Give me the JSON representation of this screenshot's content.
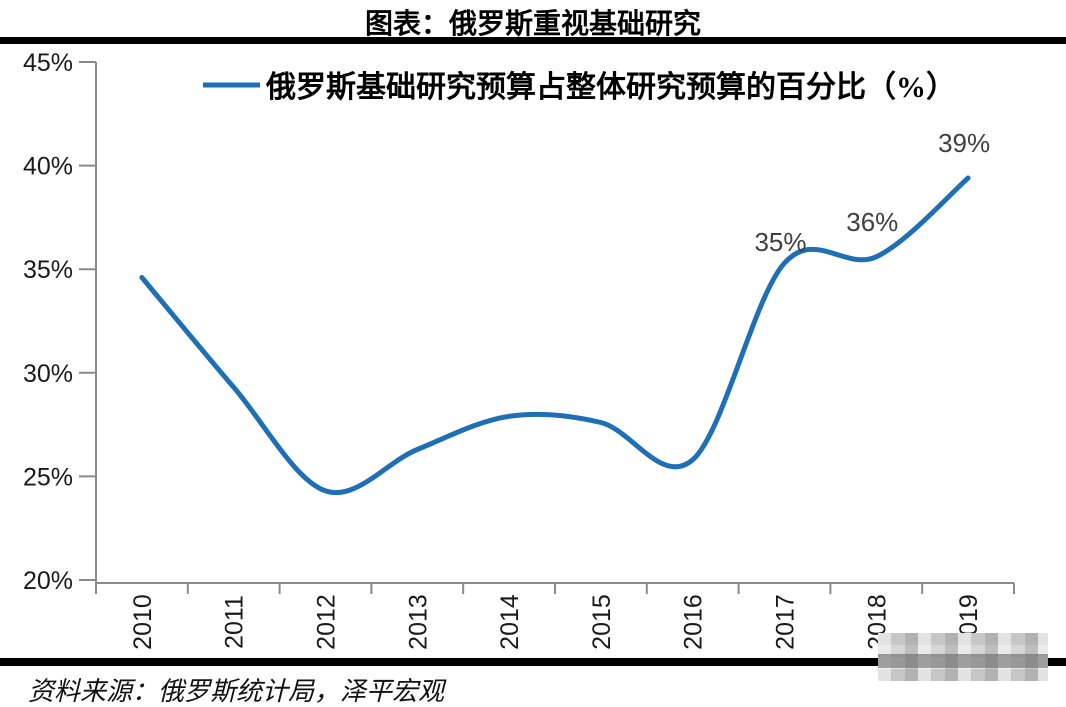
{
  "header": {
    "title": "图表：俄罗斯重视基础研究"
  },
  "legend": {
    "label": "俄罗斯基础研究预算占整体研究预算的百分比（%）"
  },
  "source": {
    "text": "资料来源：俄罗斯统计局，泽平宏观"
  },
  "colors": {
    "line": "#1f6fb4",
    "axis": "#8a8a8a",
    "text": "#1a1a1a",
    "annotation": "#3f3f3f",
    "rule": "#000000"
  },
  "chart_data": {
    "type": "line",
    "title": "图表：俄罗斯重视基础研究",
    "series_name": "俄罗斯基础研究预算占整体研究预算的百分比（%）",
    "categories": [
      "2010",
      "2011",
      "2012",
      "2013",
      "2014",
      "2015",
      "2016",
      "2017",
      "2018",
      "2019"
    ],
    "values": [
      34.6,
      29.3,
      24.3,
      26.3,
      27.9,
      27.6,
      25.8,
      35.3,
      35.6,
      39.4
    ],
    "unit": "%",
    "ylim": [
      20,
      45
    ],
    "y_ticks": [
      45,
      40,
      35,
      30,
      25,
      20
    ],
    "y_tick_labels": [
      "45%",
      "40%",
      "35%",
      "30%",
      "25%",
      "20%"
    ],
    "annotations": [
      {
        "category": "2017",
        "label": "35%"
      },
      {
        "category": "2018",
        "label": "36%"
      },
      {
        "category": "2019",
        "label": "39%"
      }
    ],
    "grid": false,
    "legend_position": "top-center",
    "smooth": true,
    "source_note": "资料来源：俄罗斯统计局，泽平宏观"
  }
}
